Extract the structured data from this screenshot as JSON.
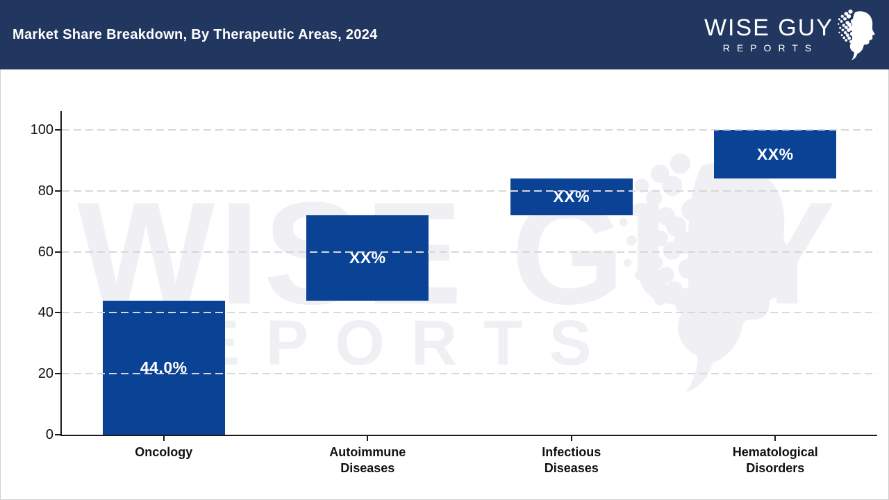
{
  "header": {
    "title": "Market Share Breakdown, By Therapeutic Areas, 2024",
    "bg_color": "#223760",
    "logo": {
      "wordmark": "WISE GUY",
      "subtext": "REPORTS"
    }
  },
  "watermark": {
    "wordmark": "WISE GUY",
    "subtext": "REPORTS"
  },
  "chart_data": {
    "type": "bar",
    "subtype": "waterfall-floating-segments",
    "title": "Market Share Breakdown, By Therapeutic Areas, 2024",
    "categories": [
      "Oncology",
      "Autoimmune Diseases",
      "Infectious Diseases",
      "Hematological Disorders"
    ],
    "segments": [
      {
        "category": "Oncology",
        "from": 0,
        "to": 44,
        "label": "44.0%"
      },
      {
        "category": "Autoimmune Diseases",
        "from": 44,
        "to": 72,
        "label": "XX%"
      },
      {
        "category": "Infectious Diseases",
        "from": 72,
        "to": 84,
        "label": "XX%"
      },
      {
        "category": "Hematological Disorders",
        "from": 84,
        "to": 100,
        "label": "XX%"
      }
    ],
    "ylim": [
      0,
      100
    ],
    "yticks": [
      0,
      20,
      40,
      60,
      80,
      100
    ],
    "grid": "horizontal-dashed",
    "legend": "none",
    "bar_color": "#0a4296",
    "bar_label_color": "#ffffff",
    "axis_color": "#1a1a1a",
    "grid_color": "#d8d8d8"
  }
}
